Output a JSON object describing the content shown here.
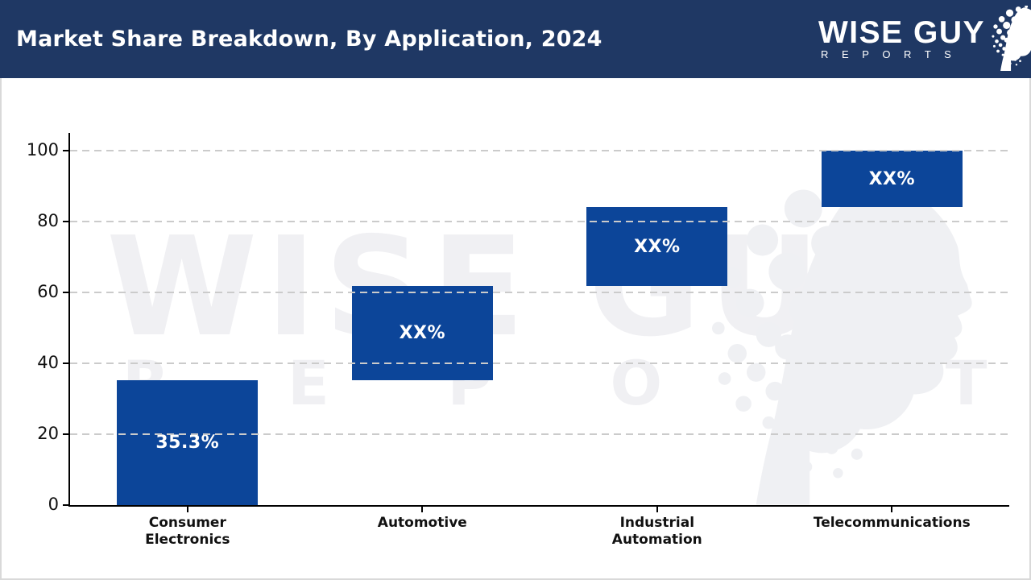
{
  "header": {
    "title": "Market Share Breakdown, By Application, 2024",
    "logo": {
      "name": "Wise Guy Reports",
      "line1": "WISE GUY",
      "line2": "R E P O R T S"
    }
  },
  "watermark": {
    "line1": "WISE GUY",
    "line2": "R E P O R T S"
  },
  "colors": {
    "header_bg": "#1f3864",
    "bar": "#0c4599",
    "grid": "#cbcbcb",
    "axis": "#000000",
    "bar_label": "#ffffff",
    "watermark": "#f0f0f3",
    "border": "#d9d9d9"
  },
  "chart_data": {
    "type": "bar",
    "subtype": "waterfall",
    "title": "Market Share Breakdown, By Application, 2024",
    "xlabel": "",
    "ylabel": "",
    "ylim": [
      0,
      100
    ],
    "yticks": [
      0,
      20,
      40,
      60,
      80,
      100
    ],
    "grid": "horizontal-dashed",
    "legend": null,
    "bars": [
      {
        "category": "Consumer Electronics",
        "category_lines": [
          "Consumer",
          "Electronics"
        ],
        "start": 0,
        "end": 35.3,
        "label": "35.3%"
      },
      {
        "category": "Automotive",
        "category_lines": [
          "Automotive"
        ],
        "start": 35.3,
        "end": 61.8,
        "label": "XX%"
      },
      {
        "category": "Industrial Automation",
        "category_lines": [
          "Industrial",
          "Automation"
        ],
        "start": 61.8,
        "end": 84.1,
        "label": "XX%"
      },
      {
        "category": "Telecommunications",
        "category_lines": [
          "Telecommunications"
        ],
        "start": 84.1,
        "end": 100,
        "label": "XX%"
      }
    ]
  }
}
